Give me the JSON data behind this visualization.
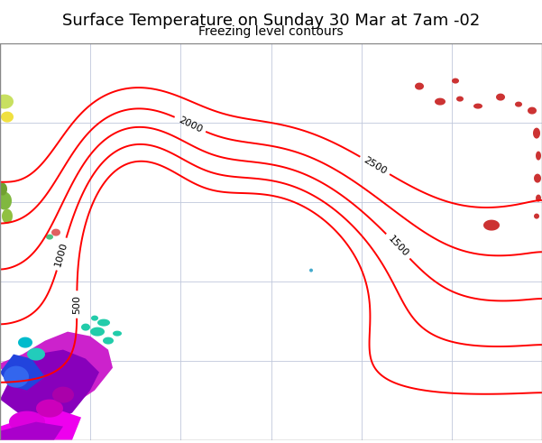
{
  "title": "Surface Temperature on Sunday 30 Mar at 7am -02",
  "subtitle": "Freezing level contours",
  "title_fontsize": 13,
  "subtitle_fontsize": 10,
  "bg_map_color": "#d8dff0",
  "grid_color": "#c0c8dc",
  "contour_color": "#ff0000",
  "contour_levels": [
    500,
    1000,
    1500,
    2000,
    2500
  ],
  "contour_linewidth": 1.4,
  "fig_bg": "#ffffff"
}
